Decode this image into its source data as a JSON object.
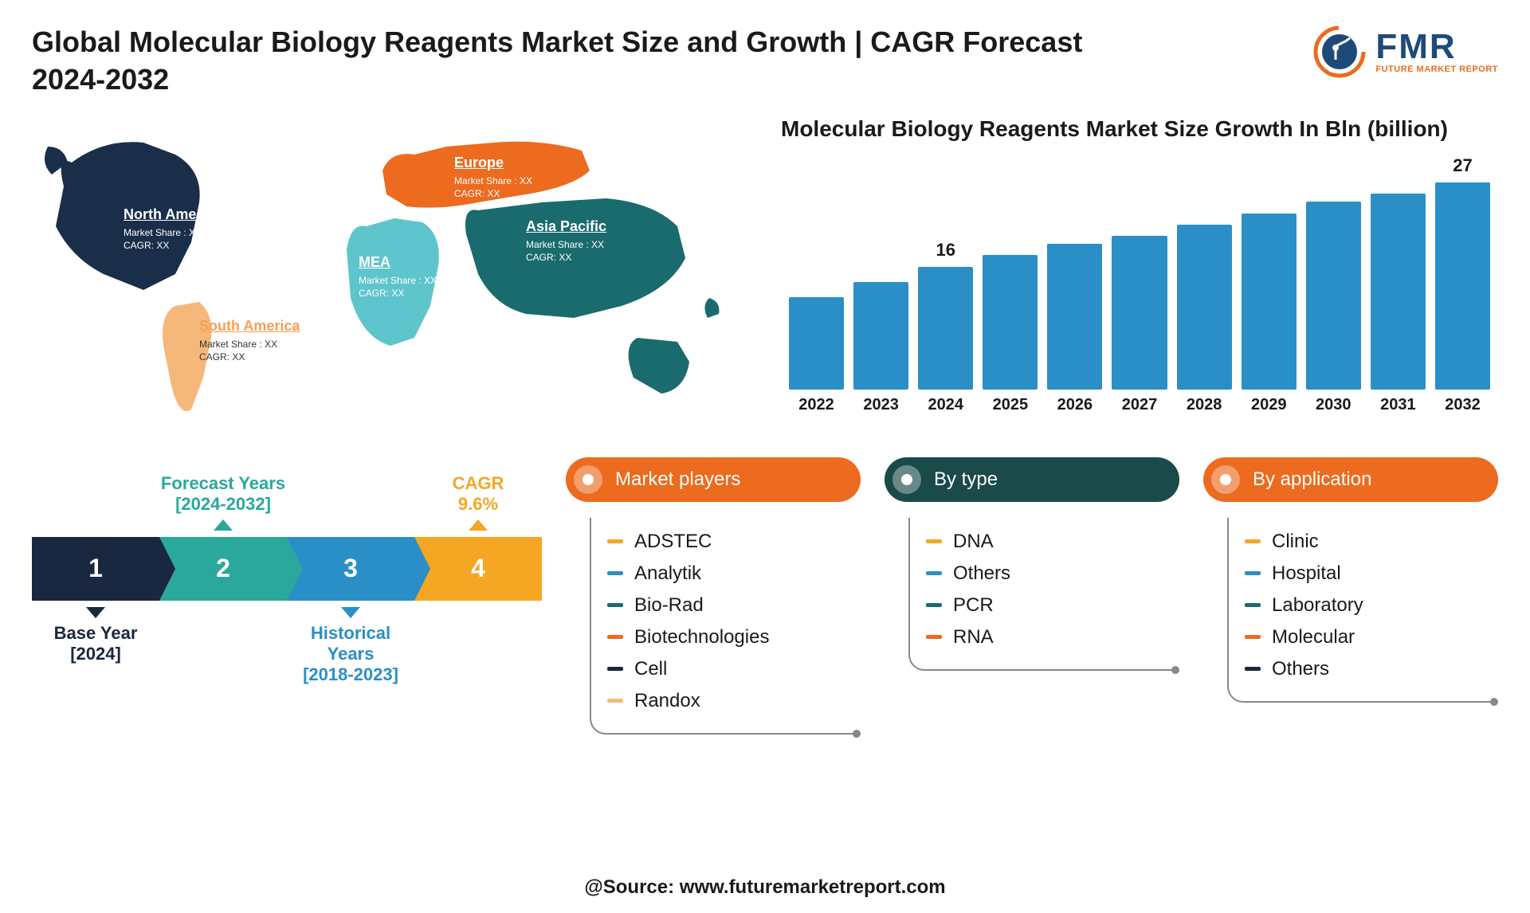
{
  "title": "Global Molecular Biology Reagents Market Size and Growth | CAGR Forecast 2024-2032",
  "logo": {
    "fmr": "FMR",
    "sub": "FUTURE MARKET REPORT"
  },
  "map": {
    "regions": [
      {
        "key": "na",
        "name": "North America",
        "share": "Market Share : XX",
        "cagr": "CAGR: XX",
        "color": "#1a2e4a"
      },
      {
        "key": "sa",
        "name": "South America",
        "share": "Market Share : XX",
        "cagr": "CAGR: XX",
        "color": "#f5b87a"
      },
      {
        "key": "eu",
        "name": "Europe",
        "share": "Market Share : XX",
        "cagr": "CAGR: XX",
        "color": "#ec6b1f"
      },
      {
        "key": "mea",
        "name": "MEA",
        "share": "Market Share : XX",
        "cagr": "CAGR: XX",
        "color": "#5ec5cc"
      },
      {
        "key": "ap",
        "name": "Asia Pacific",
        "share": "Market Share : XX",
        "cagr": "CAGR: XX",
        "color": "#1a6b6e"
      }
    ]
  },
  "bar_chart": {
    "title": "Molecular Biology Reagents Market Size Growth In Bln (billion)",
    "type": "bar",
    "bar_color": "#2a8fc7",
    "max_value": 27,
    "years": [
      "2022",
      "2023",
      "2024",
      "2025",
      "2026",
      "2027",
      "2028",
      "2029",
      "2030",
      "2031",
      "2032"
    ],
    "values": [
      12,
      14,
      16,
      17.5,
      19,
      20,
      21.5,
      23,
      24.5,
      25.5,
      27
    ],
    "shown_labels": {
      "2": "16",
      "10": "27"
    }
  },
  "timeline": {
    "segments": [
      {
        "num": "1",
        "color": "#1a2740",
        "pos": "bottom",
        "label": "Base Year",
        "sub": "[2024]",
        "label_color": "#1a2740"
      },
      {
        "num": "2",
        "color": "#2aa89b",
        "pos": "top",
        "label": "Forecast Years",
        "sub": "[2024-2032]",
        "label_color": "#2aa89b"
      },
      {
        "num": "3",
        "color": "#2a8fc7",
        "pos": "bottom",
        "label": "Historical Years",
        "sub": "[2018-2023]",
        "label_color": "#2a8fc7"
      },
      {
        "num": "4",
        "color": "#f5a623",
        "pos": "top",
        "label": "CAGR",
        "sub": "9.6%",
        "label_color": "#f5a623"
      }
    ]
  },
  "categories": [
    {
      "title": "Market players",
      "header_color": "#ec6b1f",
      "items": [
        {
          "label": "ADSTEC",
          "color": "#f5a623"
        },
        {
          "label": "Analytik",
          "color": "#2a8fc7"
        },
        {
          "label": "Bio-Rad",
          "color": "#1a6b6e"
        },
        {
          "label": "Biotechnologies",
          "color": "#ec6b1f"
        },
        {
          "label": "Cell",
          "color": "#1a2740"
        },
        {
          "label": "Randox",
          "color": "#f5b87a"
        }
      ]
    },
    {
      "title": "By type",
      "header_color": "#1a4a4a",
      "items": [
        {
          "label": "DNA",
          "color": "#f5a623"
        },
        {
          "label": "Others",
          "color": "#2a8fc7"
        },
        {
          "label": "PCR",
          "color": "#1a6b6e"
        },
        {
          "label": "RNA",
          "color": "#ec6b1f"
        }
      ]
    },
    {
      "title": "By application",
      "header_color": "#ec6b1f",
      "items": [
        {
          "label": "Clinic",
          "color": "#f5a623"
        },
        {
          "label": "Hospital",
          "color": "#2a8fc7"
        },
        {
          "label": "Laboratory",
          "color": "#1a6b6e"
        },
        {
          "label": "Molecular",
          "color": "#ec6b1f"
        },
        {
          "label": "Others",
          "color": "#1a2740"
        }
      ]
    }
  ],
  "source": "@Source: www.futuremarketreport.com"
}
